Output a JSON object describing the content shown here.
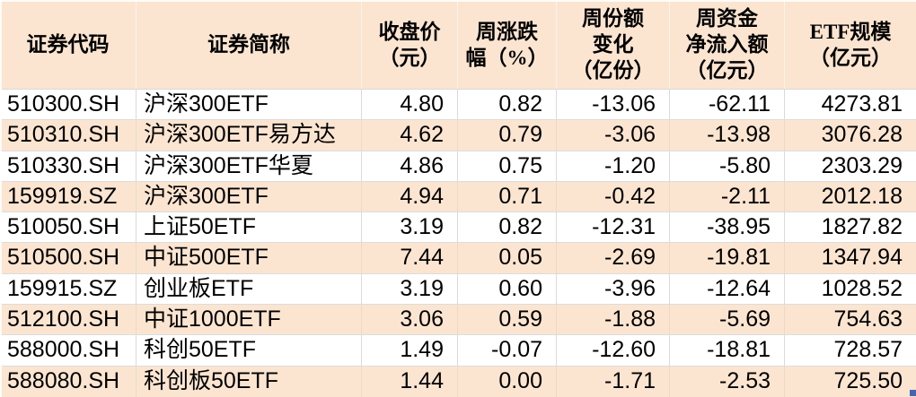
{
  "chart_data": {
    "type": "table",
    "columns": [
      {
        "id": "code",
        "label": "证券代码"
      },
      {
        "id": "name",
        "label": "证券简称"
      },
      {
        "id": "close-price",
        "label": "收盘价\n（元）"
      },
      {
        "id": "weekly-change-pct",
        "label": "周涨跌\n幅（%）"
      },
      {
        "id": "weekly-share-change",
        "label": "周份额\n变化\n（亿份）"
      },
      {
        "id": "weekly-net-inflow",
        "label": "周资金\n净流入额\n（亿元）"
      },
      {
        "id": "etf-scale",
        "label": "ETF规模\n（亿元）"
      }
    ],
    "rows": [
      [
        "510300.SH",
        "沪深300ETF",
        "4.80",
        "0.82",
        "-13.06",
        "-62.11",
        "4273.81"
      ],
      [
        "510310.SH",
        "沪深300ETF易方达",
        "4.62",
        "0.79",
        "-3.06",
        "-13.98",
        "3076.28"
      ],
      [
        "510330.SH",
        "沪深300ETF华夏",
        "4.86",
        "0.75",
        "-1.20",
        "-5.80",
        "2303.29"
      ],
      [
        "159919.SZ",
        "沪深300ETF",
        "4.94",
        "0.71",
        "-0.42",
        "-2.11",
        "2012.18"
      ],
      [
        "510050.SH",
        "上证50ETF",
        "3.19",
        "0.82",
        "-12.31",
        "-38.95",
        "1827.82"
      ],
      [
        "510500.SH",
        "中证500ETF",
        "7.44",
        "0.05",
        "-2.69",
        "-19.81",
        "1347.94"
      ],
      [
        "159915.SZ",
        "创业板ETF",
        "3.19",
        "0.60",
        "-3.96",
        "-12.64",
        "1028.52"
      ],
      [
        "512100.SH",
        "中证1000ETF",
        "3.06",
        "0.59",
        "-1.88",
        "-5.69",
        "754.63"
      ],
      [
        "588000.SH",
        "科创50ETF",
        "1.49",
        "-0.07",
        "-12.60",
        "-18.81",
        "728.57"
      ],
      [
        "588080.SH",
        "科创板50ETF",
        "1.44",
        "0.00",
        "-1.71",
        "-2.53",
        "725.50"
      ]
    ]
  },
  "style": {
    "colors": {
      "header_bg": "#FBE5D1",
      "stripe_row_bg": "#FBE5D1",
      "plain_row_bg": "#FFFFFF",
      "grid_line": "#DCDCDC",
      "text": "#000000",
      "fill_handle": "#4566AF"
    }
  }
}
